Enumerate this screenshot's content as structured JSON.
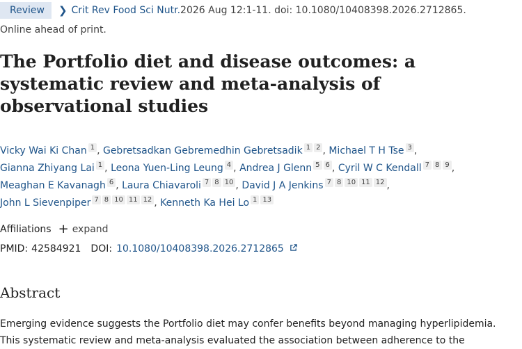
{
  "citation": {
    "badge": "Review",
    "journal": "Crit Rev Food Sci Nutr.",
    "details": " 2026 Aug 12:1-11. doi: 10.1080/10408398.2026.2712865.",
    "status": "Online ahead of print."
  },
  "article": {
    "title": "The Portfolio diet and disease outcomes: a systematic review and meta-analysis of observational studies"
  },
  "authors": [
    {
      "name": "Vicky Wai Ki Chan",
      "affs": [
        "1"
      ]
    },
    {
      "name": "Gebretsadkan Gebremedhin Gebretsadik",
      "affs": [
        "1",
        "2"
      ]
    },
    {
      "name": "Michael T H Tse",
      "affs": [
        "3"
      ]
    },
    {
      "name": "Gianna Zhiyang Lai",
      "affs": [
        "1"
      ]
    },
    {
      "name": "Leona Yuen-Ling Leung",
      "affs": [
        "4"
      ]
    },
    {
      "name": "Andrea J Glenn",
      "affs": [
        "5",
        "6"
      ]
    },
    {
      "name": "Cyril W C Kendall",
      "affs": [
        "7",
        "8",
        "9"
      ]
    },
    {
      "name": "Meaghan E Kavanagh",
      "affs": [
        "6"
      ]
    },
    {
      "name": "Laura Chiavaroli",
      "affs": [
        "7",
        "8",
        "10"
      ]
    },
    {
      "name": "David J A Jenkins",
      "affs": [
        "7",
        "8",
        "10",
        "11",
        "12"
      ]
    },
    {
      "name": "John L Sievenpiper",
      "affs": [
        "7",
        "8",
        "10",
        "11",
        "12"
      ]
    },
    {
      "name": "Kenneth Ka Hei Lo",
      "affs": [
        "1",
        "13"
      ]
    }
  ],
  "affiliations": {
    "label": "Affiliations",
    "expand_label": "expand"
  },
  "identifiers": {
    "pmid_label": "PMID:",
    "pmid": "42584921",
    "doi_label": "DOI:",
    "doi": "10.1080/10408398.2026.2712865"
  },
  "abstract": {
    "heading": "Abstract",
    "lines": [
      "Emerging evidence suggests the Portfolio diet may confer benefits beyond managing hyperlipidemia.",
      "This systematic review and meta-analysis evaluated the association between adherence to the"
    ]
  },
  "icons": {
    "chevron": "chevron-right-icon",
    "plus": "plus-icon",
    "external": "external-link-icon"
  },
  "colors": {
    "link": "#20558a",
    "badge_bg": "#dfe7f2",
    "aff_bg": "#eeeeee"
  }
}
